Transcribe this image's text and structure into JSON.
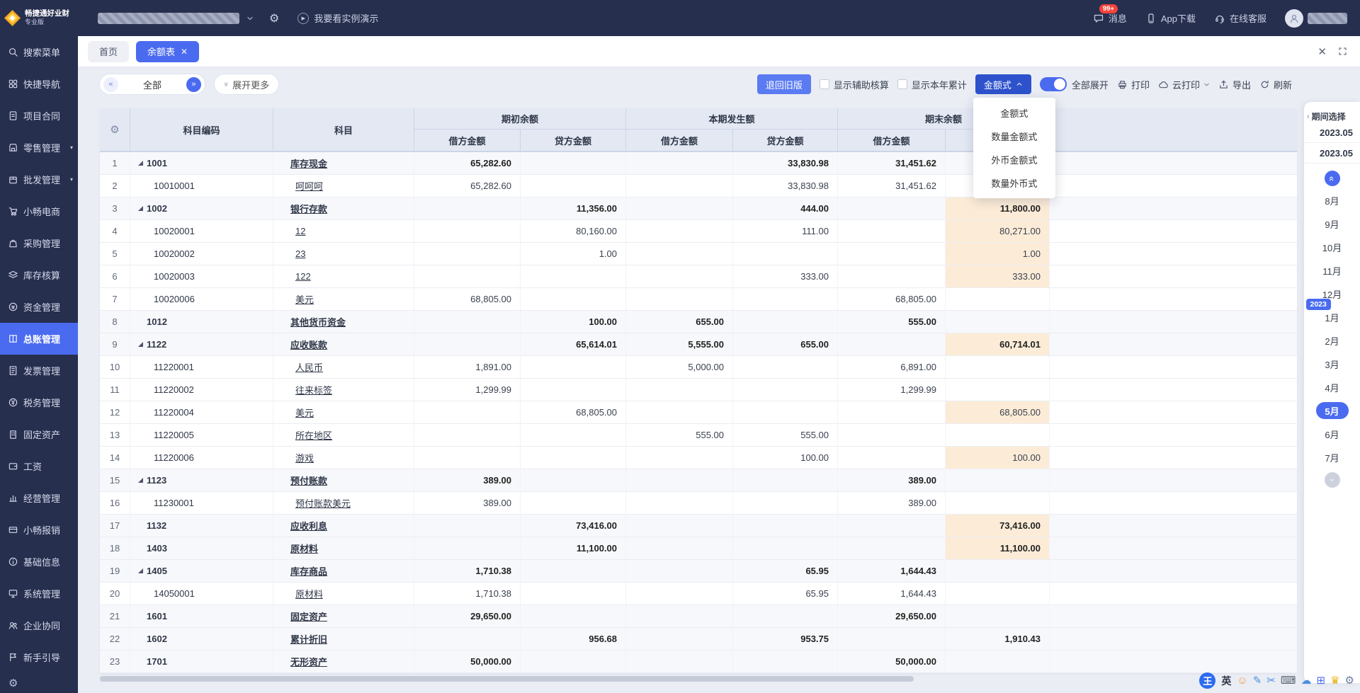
{
  "brand": {
    "name": "畅捷通好业财",
    "edition": "专业版"
  },
  "topbar": {
    "demo_label": "我要看实例演示",
    "messages_label": "消息",
    "messages_badge": "99+",
    "app_download_label": "App下载",
    "support_label": "在线客服"
  },
  "sidebar": {
    "items": [
      {
        "label": "搜索菜单",
        "icon": "search",
        "active": false,
        "expandable": false
      },
      {
        "label": "快捷导航",
        "icon": "grid",
        "active": false,
        "expandable": false
      },
      {
        "label": "项目合同",
        "icon": "doc",
        "active": false,
        "expandable": false
      },
      {
        "label": "零售管理",
        "icon": "store",
        "active": false,
        "expandable": true
      },
      {
        "label": "批发管理",
        "icon": "box",
        "active": false,
        "expandable": true
      },
      {
        "label": "小畅电商",
        "icon": "cart",
        "active": false,
        "expandable": false
      },
      {
        "label": "采购管理",
        "icon": "bag",
        "active": false,
        "expandable": false
      },
      {
        "label": "库存核算",
        "icon": "layers",
        "active": false,
        "expandable": false
      },
      {
        "label": "资金管理",
        "icon": "coin",
        "active": false,
        "expandable": false
      },
      {
        "label": "总账管理",
        "icon": "book",
        "active": true,
        "expandable": false
      },
      {
        "label": "发票管理",
        "icon": "invoice",
        "active": false,
        "expandable": false
      },
      {
        "label": "税务管理",
        "icon": "tax",
        "active": false,
        "expandable": false
      },
      {
        "label": "固定资产",
        "icon": "building",
        "active": false,
        "expandable": false
      },
      {
        "label": "工资",
        "icon": "wallet",
        "active": false,
        "expandable": false
      },
      {
        "label": "经营管理",
        "icon": "chart",
        "active": false,
        "expandable": false
      },
      {
        "label": "小畅报销",
        "icon": "card",
        "active": false,
        "expandable": false
      },
      {
        "label": "基础信息",
        "icon": "info",
        "active": false,
        "expandable": false
      },
      {
        "label": "系统管理",
        "icon": "monitor",
        "active": false,
        "expandable": false
      },
      {
        "label": "企业协同",
        "icon": "people",
        "active": false,
        "expandable": false
      },
      {
        "label": "新手引导",
        "icon": "flag",
        "active": false,
        "expandable": false
      }
    ]
  },
  "tabs": [
    {
      "label": "首页",
      "active": false,
      "closable": false
    },
    {
      "label": "余额表",
      "active": true,
      "closable": true
    }
  ],
  "window": {
    "close_glyph": "✕"
  },
  "toolbar": {
    "scope_value": "全部",
    "expand_more": "展开更多",
    "back_old": "退回旧版",
    "checkbox_aux": "显示辅助核算",
    "checkbox_ytd": "显示本年累计",
    "format_button": "金额式",
    "expand_all": "全部展开",
    "print": "打印",
    "cloud_print": "云打印",
    "export": "导出",
    "refresh": "刷新"
  },
  "format_menu": {
    "items": [
      "金额式",
      "数量金额式",
      "外币金额式",
      "数量外币式"
    ]
  },
  "table": {
    "headers": {
      "code": "科目编码",
      "name": "科目",
      "opening": "期初余额",
      "current": "本期发生额",
      "closing": "期末余额",
      "debit": "借方金额",
      "credit": "贷方金额"
    },
    "rows": [
      {
        "no": 1,
        "code": "1001",
        "name": "库存现金",
        "parent": true,
        "expand": true,
        "od": "65,282.60",
        "oc": "",
        "cd": "",
        "cc": "33,830.98",
        "ed": "31,451.62",
        "ec": "",
        "hl": false
      },
      {
        "no": 2,
        "code": "10010001",
        "name": "呵呵呵",
        "parent": false,
        "expand": false,
        "od": "65,282.60",
        "oc": "",
        "cd": "",
        "cc": "33,830.98",
        "ed": "31,451.62",
        "ec": "",
        "hl": false
      },
      {
        "no": 3,
        "code": "1002",
        "name": "银行存款",
        "parent": true,
        "expand": true,
        "od": "",
        "oc": "11,356.00",
        "cd": "",
        "cc": "444.00",
        "ed": "",
        "ec": "11,800.00",
        "hl": true
      },
      {
        "no": 4,
        "code": "10020001",
        "name": "12",
        "parent": false,
        "expand": false,
        "od": "",
        "oc": "80,160.00",
        "cd": "",
        "cc": "111.00",
        "ed": "",
        "ec": "80,271.00",
        "hl": true
      },
      {
        "no": 5,
        "code": "10020002",
        "name": "23",
        "parent": false,
        "expand": false,
        "od": "",
        "oc": "1.00",
        "cd": "",
        "cc": "",
        "ed": "",
        "ec": "1.00",
        "hl": true
      },
      {
        "no": 6,
        "code": "10020003",
        "name": "122",
        "parent": false,
        "expand": false,
        "od": "",
        "oc": "",
        "cd": "",
        "cc": "333.00",
        "ed": "",
        "ec": "333.00",
        "hl": true
      },
      {
        "no": 7,
        "code": "10020006",
        "name": "美元",
        "parent": false,
        "expand": false,
        "od": "68,805.00",
        "oc": "",
        "cd": "",
        "cc": "",
        "ed": "68,805.00",
        "ec": "",
        "hl": false
      },
      {
        "no": 8,
        "code": "1012",
        "name": "其他货币资金",
        "parent": true,
        "expand": false,
        "od": "",
        "oc": "100.00",
        "cd": "655.00",
        "cc": "",
        "ed": "555.00",
        "ec": "",
        "hl": false
      },
      {
        "no": 9,
        "code": "1122",
        "name": "应收账款",
        "parent": true,
        "expand": true,
        "od": "",
        "oc": "65,614.01",
        "cd": "5,555.00",
        "cc": "655.00",
        "ed": "",
        "ec": "60,714.01",
        "hl": true
      },
      {
        "no": 10,
        "code": "11220001",
        "name": "人民币",
        "parent": false,
        "expand": false,
        "od": "1,891.00",
        "oc": "",
        "cd": "5,000.00",
        "cc": "",
        "ed": "6,891.00",
        "ec": "",
        "hl": false
      },
      {
        "no": 11,
        "code": "11220002",
        "name": "往来标签",
        "parent": false,
        "expand": false,
        "od": "1,299.99",
        "oc": "",
        "cd": "",
        "cc": "",
        "ed": "1,299.99",
        "ec": "",
        "hl": false
      },
      {
        "no": 12,
        "code": "11220004",
        "name": "美元",
        "parent": false,
        "expand": false,
        "od": "",
        "oc": "68,805.00",
        "cd": "",
        "cc": "",
        "ed": "",
        "ec": "68,805.00",
        "hl": true
      },
      {
        "no": 13,
        "code": "11220005",
        "name": "所在地区",
        "parent": false,
        "expand": false,
        "od": "",
        "oc": "",
        "cd": "555.00",
        "cc": "555.00",
        "ed": "",
        "ec": "",
        "hl": false
      },
      {
        "no": 14,
        "code": "11220006",
        "name": "游戏",
        "parent": false,
        "expand": false,
        "od": "",
        "oc": "",
        "cd": "",
        "cc": "100.00",
        "ed": "",
        "ec": "100.00",
        "hl": true
      },
      {
        "no": 15,
        "code": "1123",
        "name": "预付账款",
        "parent": true,
        "expand": true,
        "od": "389.00",
        "oc": "",
        "cd": "",
        "cc": "",
        "ed": "389.00",
        "ec": "",
        "hl": false
      },
      {
        "no": 16,
        "code": "11230001",
        "name": "预付账款美元",
        "parent": false,
        "expand": false,
        "od": "389.00",
        "oc": "",
        "cd": "",
        "cc": "",
        "ed": "389.00",
        "ec": "",
        "hl": false
      },
      {
        "no": 17,
        "code": "1132",
        "name": "应收利息",
        "parent": true,
        "expand": false,
        "od": "",
        "oc": "73,416.00",
        "cd": "",
        "cc": "",
        "ed": "",
        "ec": "73,416.00",
        "hl": true
      },
      {
        "no": 18,
        "code": "1403",
        "name": "原材料",
        "parent": true,
        "expand": false,
        "od": "",
        "oc": "11,100.00",
        "cd": "",
        "cc": "",
        "ed": "",
        "ec": "11,100.00",
        "hl": true
      },
      {
        "no": 19,
        "code": "1405",
        "name": "库存商品",
        "parent": true,
        "expand": true,
        "od": "1,710.38",
        "oc": "",
        "cd": "",
        "cc": "65.95",
        "ed": "1,644.43",
        "ec": "",
        "hl": false
      },
      {
        "no": 20,
        "code": "14050001",
        "name": "原材料",
        "parent": false,
        "expand": false,
        "od": "1,710.38",
        "oc": "",
        "cd": "",
        "cc": "65.95",
        "ed": "1,644.43",
        "ec": "",
        "hl": false
      },
      {
        "no": 21,
        "code": "1601",
        "name": "固定资产",
        "parent": true,
        "expand": false,
        "od": "29,650.00",
        "oc": "",
        "cd": "",
        "cc": "",
        "ed": "29,650.00",
        "ec": "",
        "hl": false
      },
      {
        "no": 22,
        "code": "1602",
        "name": "累计折旧",
        "parent": true,
        "expand": false,
        "od": "",
        "oc": "956.68",
        "cd": "",
        "cc": "953.75",
        "ed": "",
        "ec": "1,910.43",
        "hl": false
      },
      {
        "no": 23,
        "code": "1701",
        "name": "无形资产",
        "parent": true,
        "expand": false,
        "od": "50,000.00",
        "oc": "",
        "cd": "",
        "cc": "",
        "ed": "50,000.00",
        "ec": "",
        "hl": false
      }
    ]
  },
  "period": {
    "title": "期间选择",
    "from": "2023.05",
    "to": "2023.05",
    "year_badge": "2023",
    "year_break_after": "12月",
    "months": [
      "8月",
      "9月",
      "10月",
      "11月",
      "12月",
      "1月",
      "2月",
      "3月",
      "4月",
      "5月",
      "6月",
      "7月"
    ],
    "active_month": "5月"
  },
  "taskbar": {
    "ime_main": "王",
    "ime_lang": "英",
    "icons": [
      "smiley",
      "pen",
      "scissors",
      "keyboard",
      "cloud",
      "grid",
      "trophy",
      "gear"
    ]
  }
}
